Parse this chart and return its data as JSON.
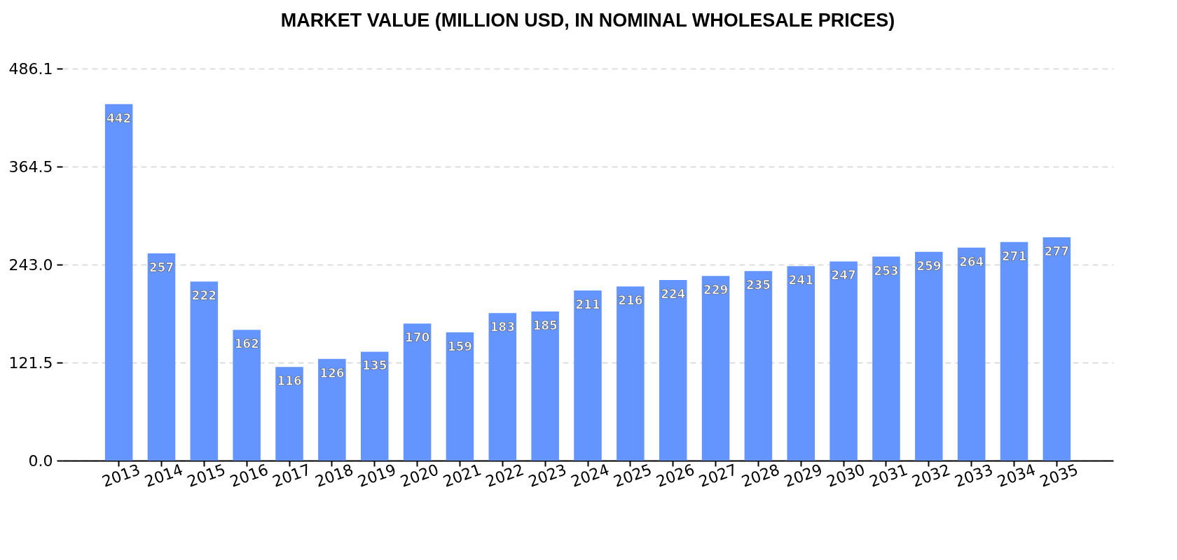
{
  "chart_data": {
    "type": "bar",
    "title": "MARKET VALUE (MILLION USD, IN NOMINAL WHOLESALE PRICES)",
    "categories": [
      "2013",
      "2014",
      "2015",
      "2016",
      "2017",
      "2018",
      "2019",
      "2020",
      "2021",
      "2022",
      "2023",
      "2024",
      "2025",
      "2026",
      "2027",
      "2028",
      "2029",
      "2030",
      "2031",
      "2032",
      "2033",
      "2034",
      "2035"
    ],
    "values": [
      442,
      257,
      222,
      162,
      116,
      126,
      135,
      170,
      159,
      183,
      185,
      211,
      216,
      224,
      229,
      235,
      241,
      247,
      253,
      259,
      264,
      271,
      277
    ],
    "color": "#6495ff",
    "ylim": [
      0,
      486.1
    ],
    "yticks": [
      {
        "value": 0,
        "label": "0.0"
      },
      121.5,
      {
        "value": 243,
        "label": "243.0"
      },
      364.5,
      486.1
    ],
    "grid": "y",
    "data_labels": true
  }
}
